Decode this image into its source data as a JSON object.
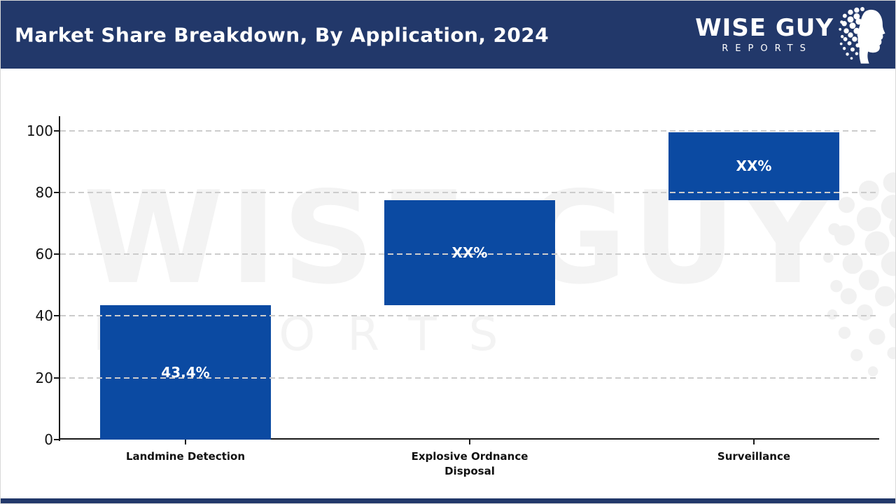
{
  "header": {
    "title": "Market Share Breakdown, By Application, 2024",
    "bg_color": "#22386A",
    "logo": {
      "line1": "WISE GUY",
      "line2": "REPORTS"
    }
  },
  "footer": {
    "bg_color": "#22386A"
  },
  "watermark": {
    "line1": "WISE GUY",
    "line2": "REPORTS"
  },
  "chart_data": {
    "type": "bar",
    "subtype": "floating-waterfall",
    "title": "Market Share Breakdown, By Application, 2024",
    "categories": [
      "Landmine Detection",
      "Explosive Ordnance Disposal",
      "Surveillance"
    ],
    "bars": [
      {
        "category": "Landmine Detection",
        "value_label": "43.4%",
        "start": 0,
        "end": 43.4
      },
      {
        "category": "Explosive Ordnance Disposal",
        "value_label": "XX%",
        "start": 43.4,
        "end": 77.5
      },
      {
        "category": "Surveillance",
        "value_label": "XX%",
        "start": 77.5,
        "end": 99.5
      }
    ],
    "y_ticks": [
      0,
      20,
      40,
      60,
      80,
      100
    ],
    "ylim": [
      0,
      104.7
    ],
    "xlabel": "",
    "ylabel": "",
    "grid": "horizontal-dashed-over-bars",
    "legend": "none",
    "bar_color": "#0B4AA2",
    "value_label_color": "#ffffff",
    "gridline_color": "#cccccc",
    "axis_color": "#1a1a1a"
  }
}
